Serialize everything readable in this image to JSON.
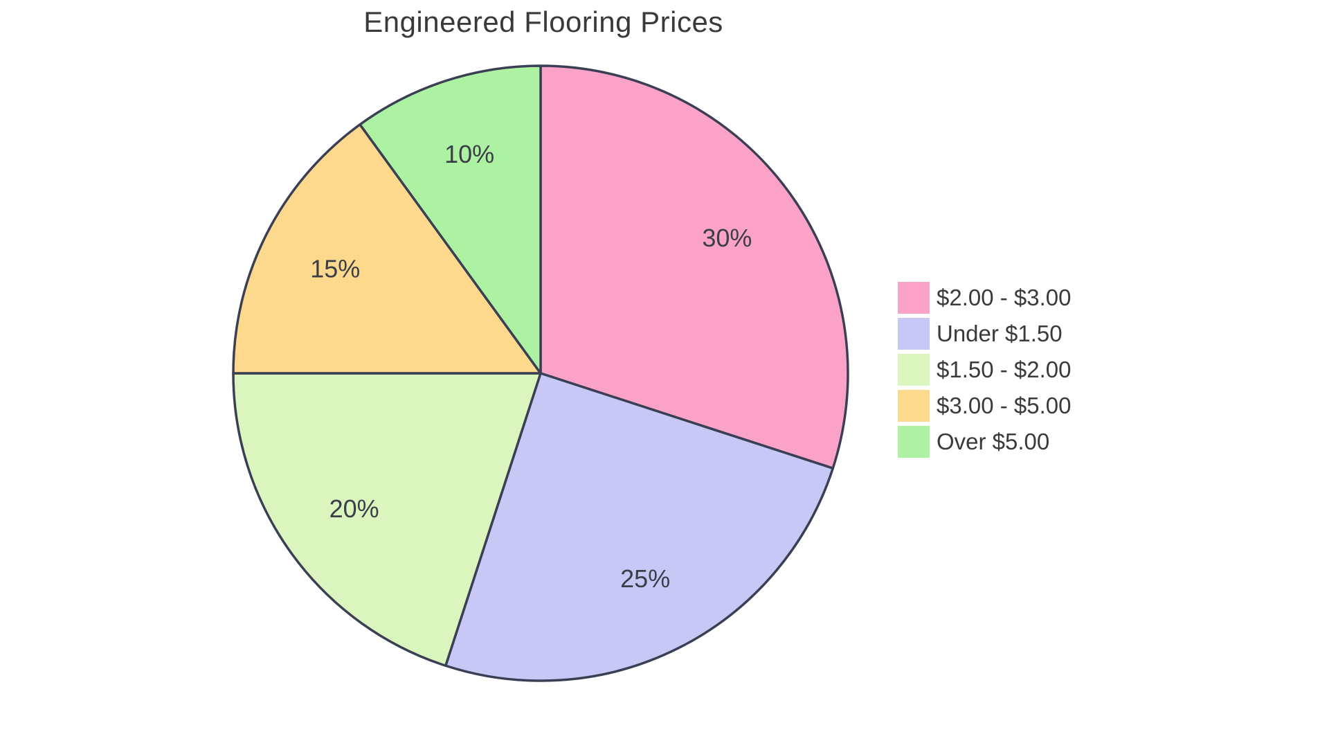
{
  "chart_data": {
    "type": "pie",
    "title": "Engineered Flooring Prices",
    "categories": [
      "$2.00 - $3.00",
      "Under $1.50",
      "$1.50 - $2.00",
      "$3.00 - $5.00",
      "Over $5.00"
    ],
    "values": [
      30,
      25,
      20,
      15,
      10
    ],
    "pct_labels": [
      "30%",
      "25%",
      "20%",
      "15%",
      "10%"
    ],
    "colors": [
      "#FBA2C9",
      "#C8C8F6",
      "#DAF5BE",
      "#FCD98C",
      "#ADF2A3"
    ],
    "slice_border_color": "#3B3F54",
    "pct_label_color": "#3B3E48",
    "title_color": "#3A3A3A",
    "legend_text_color": "#3A3A3A",
    "start_angle": "top",
    "direction": "clockwise",
    "legend_position": "middle-right",
    "grid": false
  }
}
